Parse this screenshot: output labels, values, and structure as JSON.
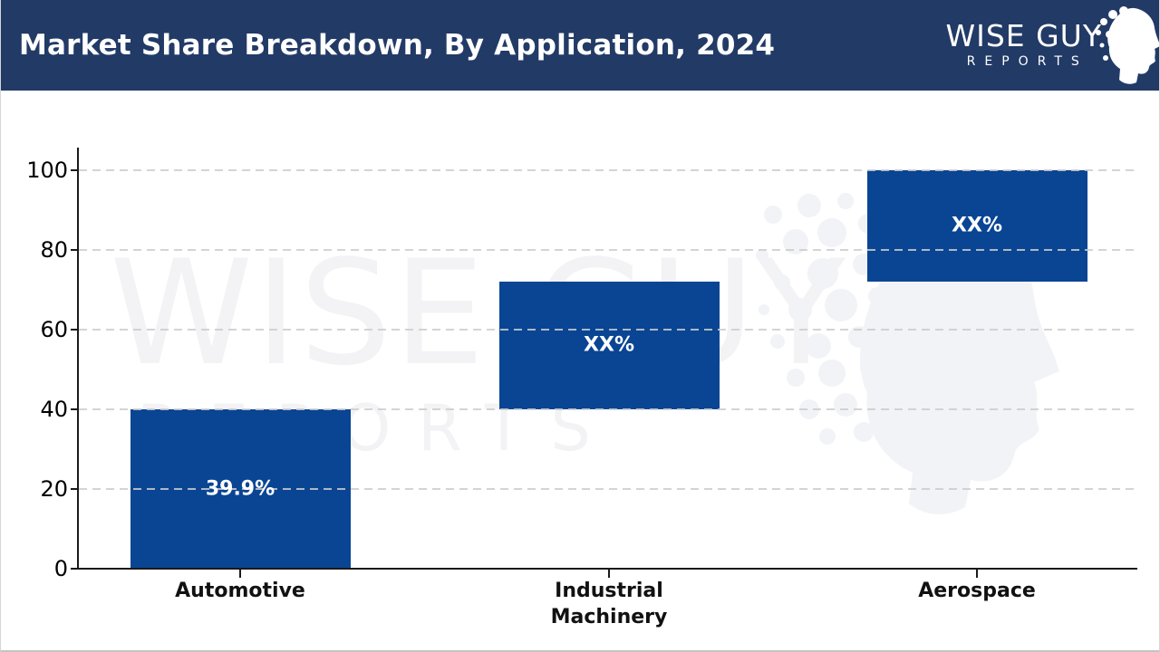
{
  "header": {
    "title": "Market Share Breakdown, By Application, 2024",
    "logo": {
      "line1": "WISE GUY",
      "line2": "REPORTS"
    }
  },
  "watermark": {
    "line1": "WISE GUY",
    "line2": "REPORTS"
  },
  "colors": {
    "header_bg": "#223a66",
    "bar": "#0a4594",
    "grid": "#cccccc",
    "axis": "#1a1a1a",
    "bar_label": "#ffffff",
    "watermark": "#f3f3f5"
  },
  "chart_data": {
    "type": "bar",
    "subtype": "floating-waterfall",
    "title": "Market Share Breakdown, By Application, 2024",
    "categories": [
      "Automotive",
      "Industrial\nMachinery",
      "Aerospace"
    ],
    "series": [
      {
        "name": "Market Share",
        "segments": [
          {
            "category": "Automotive",
            "start": 0,
            "end": 40,
            "label": "39.9%"
          },
          {
            "category": "Industrial Machinery",
            "start": 40,
            "end": 72,
            "label": "XX%"
          },
          {
            "category": "Aerospace",
            "start": 72,
            "end": 100,
            "label": "XX%"
          }
        ]
      }
    ],
    "xlabel": "",
    "ylabel": "",
    "ylim": [
      0,
      100
    ],
    "yticks": [
      0,
      20,
      40,
      60,
      80,
      100
    ],
    "grid": "horizontal-dashed-over-bars",
    "legend": "none",
    "bar_color": "#0a4594"
  }
}
